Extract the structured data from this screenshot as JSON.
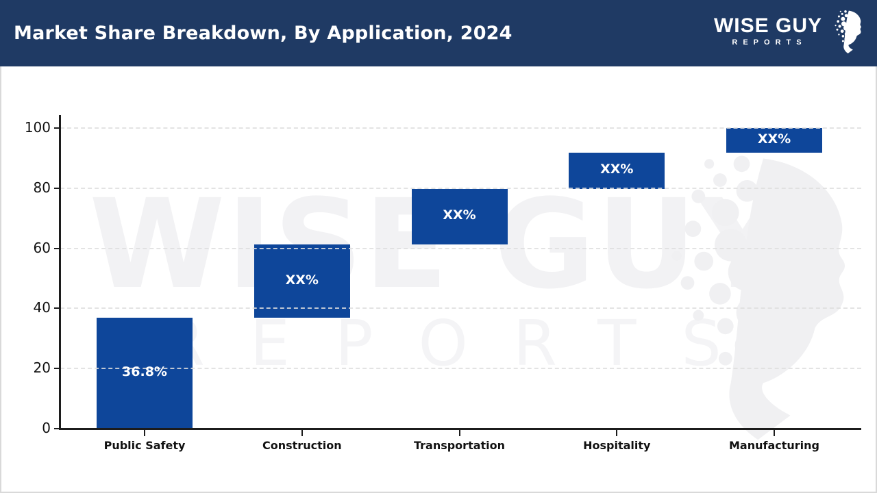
{
  "header": {
    "title": "Market Share Breakdown, By Application, 2024",
    "logo": {
      "name": "WISE GUY",
      "sub": "REPORTS"
    }
  },
  "watermark": {
    "name": "WISE GUY",
    "sub": "REPORTS"
  },
  "chart_data": {
    "type": "bar",
    "subtype": "floating-waterfall",
    "title": "Market Share Breakdown, By Application, 2024",
    "categories": [
      "Public Safety",
      "Construction",
      "Transportation",
      "Hospitality",
      "Manufacturing"
    ],
    "segments": [
      {
        "category": "Public Safety",
        "start": 0,
        "end": 36.8,
        "label": "36.8%"
      },
      {
        "category": "Construction",
        "start": 36.8,
        "end": 61.3,
        "label": "XX%"
      },
      {
        "category": "Transportation",
        "start": 61.3,
        "end": 79.8,
        "label": "XX%"
      },
      {
        "category": "Hospitality",
        "start": 79.8,
        "end": 91.9,
        "label": "XX%"
      },
      {
        "category": "Manufacturing",
        "start": 91.9,
        "end": 100,
        "label": "XX%"
      }
    ],
    "ylim": [
      0,
      100
    ],
    "yticks": [
      0,
      20,
      40,
      60,
      80,
      100
    ],
    "xlabel": "",
    "ylabel": "",
    "grid": "horizontal-dashed",
    "legend": "none",
    "bar_color": "#0e469a",
    "bar_label_color": "#ffffff",
    "header_color": "#1f3a64"
  }
}
